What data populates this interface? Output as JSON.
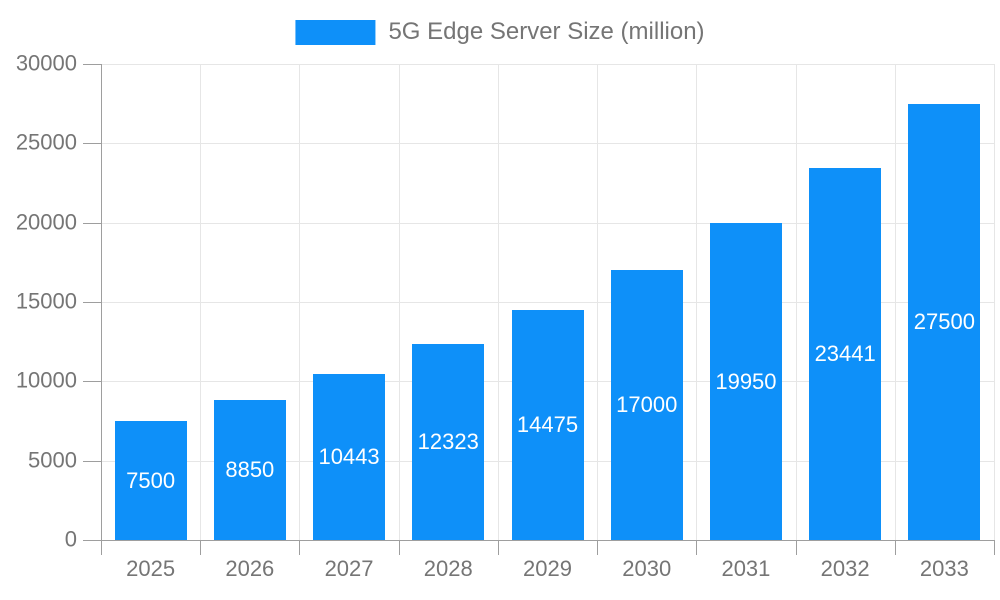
{
  "legend": {
    "label": "5G Edge Server Size (million)"
  },
  "chart_data": {
    "type": "bar",
    "title": "5G Edge Server Size (million)",
    "series_name": "5G Edge Server Size (million)",
    "categories": [
      "2025",
      "2026",
      "2027",
      "2028",
      "2029",
      "2030",
      "2031",
      "2032",
      "2033"
    ],
    "values": [
      7500,
      8850,
      10443,
      12323,
      14475,
      17000,
      19950,
      23441,
      27500
    ],
    "value_labels": [
      "7500",
      "8850",
      "10443",
      "12323",
      "14475",
      "17000",
      "19950",
      "23441",
      "27500"
    ],
    "y_tick_labels": [
      "0",
      "5000",
      "10000",
      "15000",
      "20000",
      "25000",
      "30000"
    ],
    "xlabel": "",
    "ylabel": "",
    "ylim": [
      0,
      30000
    ],
    "ytick_step": 5000,
    "grid": true,
    "legend_position": "top-center",
    "colors": {
      "bar": "#0E90F9",
      "bar_label": "#FFFFFF",
      "axis_text": "#757575",
      "grid_line": "#E6E6E6",
      "axis_line": "#9E9E9E"
    }
  }
}
